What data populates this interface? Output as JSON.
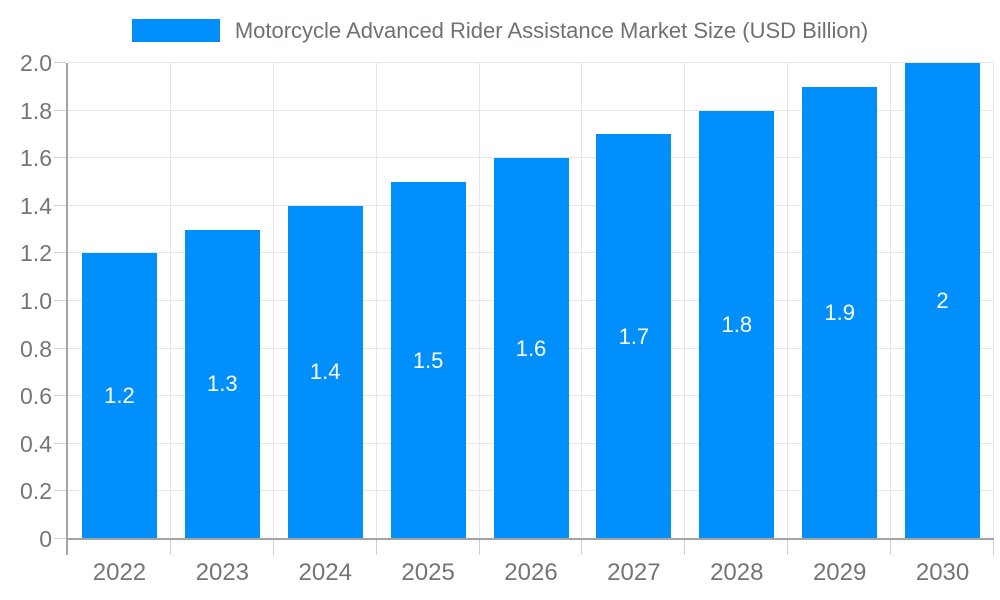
{
  "chart_data": {
    "type": "bar",
    "title": "Motorcycle Advanced Rider Assistance Market Size (USD Billion)",
    "categories": [
      "2022",
      "2023",
      "2024",
      "2025",
      "2026",
      "2027",
      "2028",
      "2029",
      "2030"
    ],
    "values": [
      1.2,
      1.3,
      1.4,
      1.5,
      1.6,
      1.7,
      1.8,
      1.9,
      2
    ],
    "bar_labels": [
      "1.2",
      "1.3",
      "1.4",
      "1.5",
      "1.6",
      "1.7",
      "1.8",
      "1.9",
      "2"
    ],
    "xlabel": "",
    "ylabel": "",
    "ylim": [
      0,
      2
    ],
    "y_tick_step": 0.2,
    "y_tick_labels": [
      "0",
      "0.2",
      "0.4",
      "0.6",
      "0.8",
      "1.0",
      "1.2",
      "1.4",
      "1.6",
      "1.8",
      "2.0"
    ],
    "grid": true,
    "legend_position": "top",
    "colors": {
      "bar": "#008FFB",
      "bar_label_text": "#FFFFFF",
      "axis_text": "#757575",
      "legend_text": "#6E7173",
      "gridline": "#E7E7E7",
      "axis_line": "#A3A3A3",
      "tick": "#D0D0D0"
    }
  }
}
